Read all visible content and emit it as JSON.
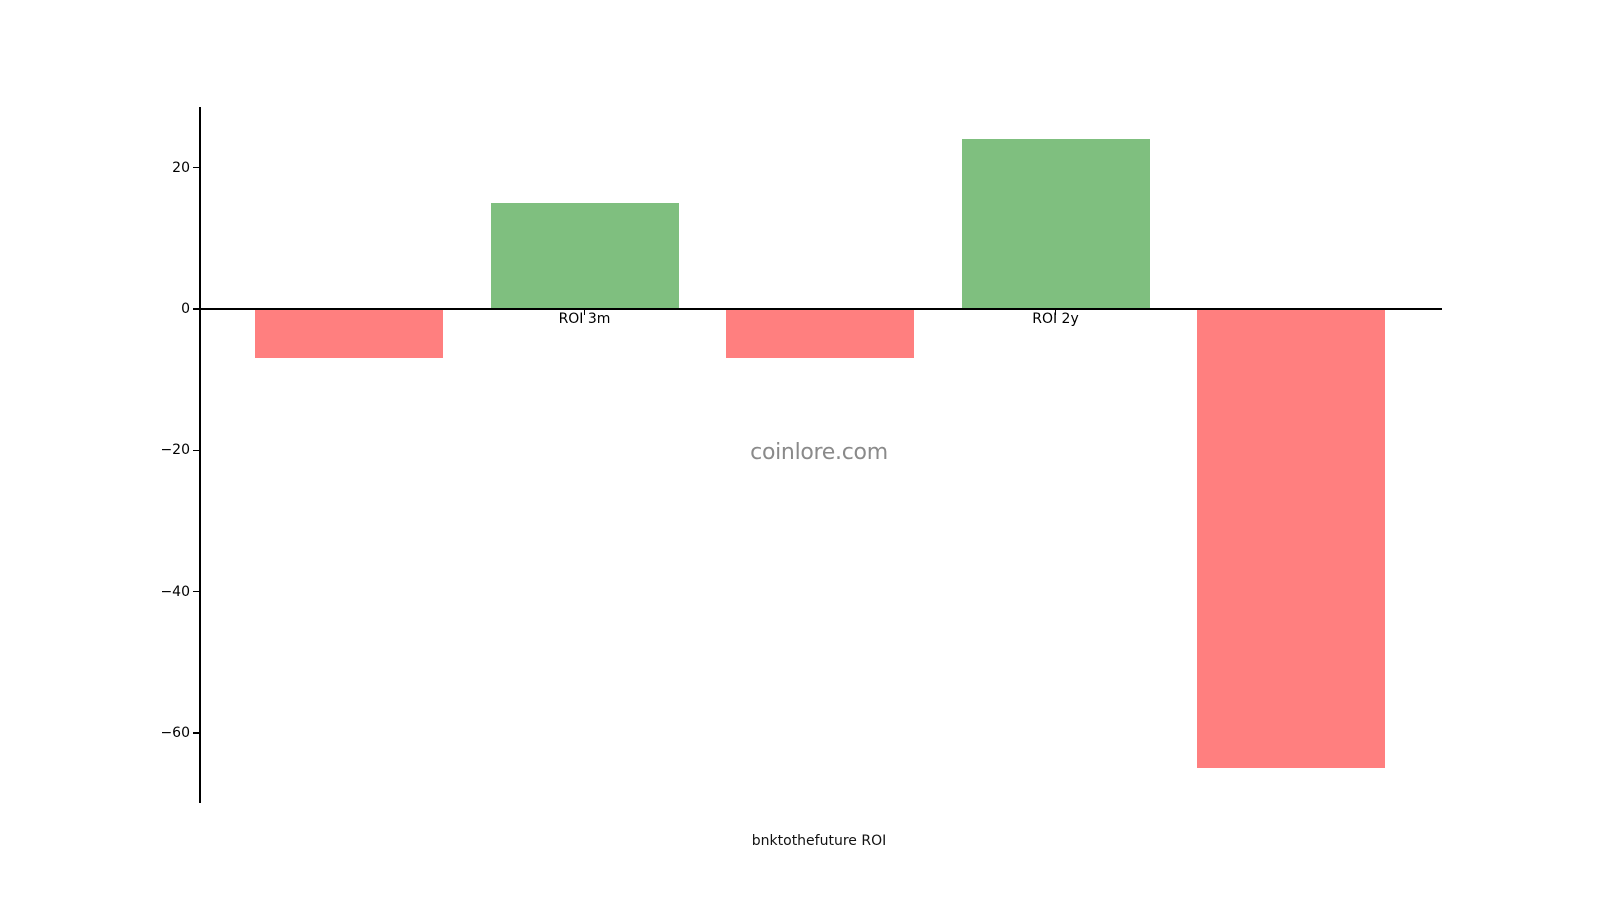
{
  "page": {
    "background_color": "#ffffff"
  },
  "watermark": {
    "text": "coinlore.com",
    "color": "#8a8a8a"
  },
  "chart_data": {
    "type": "bar",
    "title": "",
    "xlabel": "bnktothefuture ROI",
    "ylabel": "",
    "categories": [
      "",
      "ROI 3m",
      "",
      "ROI 2y",
      ""
    ],
    "values": [
      -7,
      15,
      -7,
      24,
      -65
    ],
    "bar_colors": [
      "#ff7f7f",
      "#7fbf7f",
      "#ff7f7f",
      "#7fbf7f",
      "#ff7f7f"
    ],
    "positive_color": "#7fbf7f",
    "negative_color": "#ff7f7f",
    "axis_color": "#000000",
    "yticks": [
      20,
      0,
      -20,
      -40,
      -60
    ],
    "ytick_labels": [
      "20",
      "0",
      "−20",
      "−40",
      "−60"
    ],
    "ylim": [
      -69.8,
      28.6
    ],
    "grid": false,
    "legend_position": "none"
  }
}
